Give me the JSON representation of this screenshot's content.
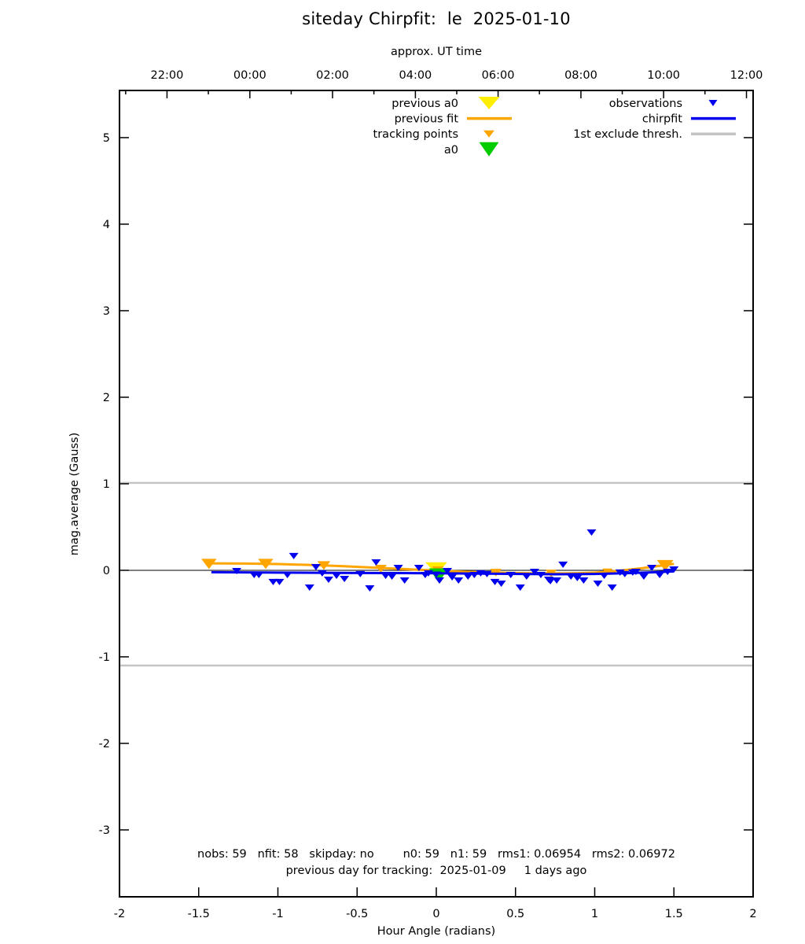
{
  "chart_data": {
    "type": "scatter",
    "title": "siteday Chirpfit:  le  2025-01-10",
    "x2label": "approx. UT time",
    "xlabel": "Hour Angle (radians)",
    "ylabel": "mag.average (Gauss)",
    "xlim": [
      -2,
      2
    ],
    "ylim": [
      -3.773,
      5.545
    ],
    "grid": false,
    "x_ticks": [
      {
        "v": -2,
        "label": "-2"
      },
      {
        "v": -1.5,
        "label": "-1.5"
      },
      {
        "v": -1,
        "label": "-1"
      },
      {
        "v": -0.5,
        "label": "-0.5"
      },
      {
        "v": 0,
        "label": "0"
      },
      {
        "v": 0.5,
        "label": "0.5"
      },
      {
        "v": 1,
        "label": "1"
      },
      {
        "v": 1.5,
        "label": "1.5"
      },
      {
        "v": 2,
        "label": "2"
      }
    ],
    "y_ticks": [
      {
        "v": -3,
        "label": "-3"
      },
      {
        "v": -2,
        "label": "-2"
      },
      {
        "v": -1,
        "label": "-1"
      },
      {
        "v": 0,
        "label": "0"
      },
      {
        "v": 1,
        "label": "1"
      },
      {
        "v": 2,
        "label": "2"
      },
      {
        "v": 3,
        "label": "3"
      },
      {
        "v": 4,
        "label": "4"
      },
      {
        "v": 5,
        "label": "5"
      }
    ],
    "ut_ticks": [
      {
        "ha": -1.7,
        "label": "22:00"
      },
      {
        "ha": -1.177,
        "label": "00:00"
      },
      {
        "ha": -0.655,
        "label": "02:00"
      },
      {
        "ha": -0.132,
        "label": "04:00"
      },
      {
        "ha": 0.39,
        "label": "06:00"
      },
      {
        "ha": 0.913,
        "label": "08:00"
      },
      {
        "ha": 1.435,
        "label": "10:00"
      },
      {
        "ha": 1.958,
        "label": "12:00"
      }
    ],
    "ut_minor_ticks": [
      -1.961,
      -1.439,
      -0.916,
      -0.394,
      0.129,
      0.651,
      1.174,
      1.696
    ],
    "colors": {
      "observations": "#0000ee",
      "chirpfit": "#0000ee",
      "previous_fit": "#ffa500",
      "tracking_points": "#ffa500",
      "previous_a0": "#ffee00",
      "a0": "#00cc00",
      "exclude_threshold": "#c4c4c4",
      "axis": "#000000"
    },
    "series": {
      "exclude_thresholds": {
        "name": "1st exclude thresh.",
        "values": [
          1.01,
          -1.1
        ]
      },
      "previous_a0": {
        "name": "previous a0",
        "points": [
          [
            0.0,
            0.025
          ]
        ]
      },
      "a0": {
        "name": "a0",
        "points": [
          [
            0.015,
            -0.06
          ]
        ]
      },
      "previous_fit": {
        "name": "previous fit",
        "points": [
          [
            -1.45,
            0.08
          ],
          [
            -1.2,
            0.078
          ],
          [
            -1.0,
            0.072
          ],
          [
            -0.8,
            0.062
          ],
          [
            -0.6,
            0.048
          ],
          [
            -0.4,
            0.032
          ],
          [
            -0.2,
            0.014
          ],
          [
            0.0,
            -0.004
          ],
          [
            0.2,
            -0.018
          ],
          [
            0.4,
            -0.028
          ],
          [
            0.6,
            -0.034
          ],
          [
            0.8,
            -0.036
          ],
          [
            0.9,
            -0.033
          ],
          [
            1.0,
            -0.026
          ],
          [
            1.1,
            -0.014
          ],
          [
            1.2,
            0.004
          ],
          [
            1.3,
            0.025
          ],
          [
            1.4,
            0.05
          ],
          [
            1.5,
            0.075
          ]
        ]
      },
      "chirpfit": {
        "name": "chirpfit",
        "points": [
          [
            -1.42,
            -0.022
          ],
          [
            -1.0,
            -0.027
          ],
          [
            -0.5,
            -0.031
          ],
          [
            0.0,
            -0.034
          ],
          [
            0.4,
            -0.04
          ],
          [
            0.75,
            -0.046
          ],
          [
            1.0,
            -0.042
          ],
          [
            1.2,
            -0.033
          ],
          [
            1.35,
            -0.024
          ],
          [
            1.5,
            -0.013
          ]
        ]
      },
      "tracking_points": {
        "name": "tracking points",
        "points": [
          [
            -1.435,
            0.073,
            1.3
          ],
          [
            -1.077,
            0.073,
            1.3
          ],
          [
            -0.71,
            0.055,
            1.1
          ],
          [
            -0.35,
            0.018,
            1.0
          ],
          [
            0.01,
            0.0,
            1.0
          ],
          [
            0.376,
            -0.027,
            0.95
          ],
          [
            0.725,
            -0.036,
            0.95
          ],
          [
            1.08,
            -0.018,
            0.85
          ],
          [
            1.445,
            0.055,
            1.4
          ]
        ]
      },
      "observations": {
        "name": "observations",
        "points": [
          [
            -1.26,
            -0.01
          ],
          [
            -1.15,
            -0.055
          ],
          [
            -1.12,
            -0.055
          ],
          [
            -1.03,
            -0.136
          ],
          [
            -0.99,
            -0.136
          ],
          [
            -0.94,
            -0.055
          ],
          [
            -0.9,
            0.164
          ],
          [
            -0.8,
            -0.2
          ],
          [
            -0.76,
            0.036
          ],
          [
            -0.72,
            -0.036
          ],
          [
            -0.68,
            -0.109
          ],
          [
            -0.63,
            -0.064
          ],
          [
            -0.58,
            -0.1
          ],
          [
            -0.48,
            -0.045
          ],
          [
            -0.42,
            -0.21
          ],
          [
            -0.38,
            0.09
          ],
          [
            -0.32,
            -0.064
          ],
          [
            -0.28,
            -0.073
          ],
          [
            -0.24,
            0.027
          ],
          [
            -0.2,
            -0.118
          ],
          [
            -0.11,
            0.027
          ],
          [
            -0.07,
            -0.055
          ],
          [
            -0.05,
            -0.036
          ],
          [
            0.0,
            -0.05
          ],
          [
            0.02,
            -0.118
          ],
          [
            0.07,
            -0.009
          ],
          [
            0.1,
            -0.082
          ],
          [
            0.14,
            -0.118
          ],
          [
            0.2,
            -0.073
          ],
          [
            0.24,
            -0.055
          ],
          [
            0.28,
            -0.036
          ],
          [
            0.32,
            -0.045
          ],
          [
            0.37,
            -0.136
          ],
          [
            0.41,
            -0.155
          ],
          [
            0.47,
            -0.055
          ],
          [
            0.53,
            -0.2
          ],
          [
            0.57,
            -0.073
          ],
          [
            0.62,
            -0.018
          ],
          [
            0.66,
            -0.055
          ],
          [
            0.71,
            -0.109
          ],
          [
            0.72,
            -0.127
          ],
          [
            0.76,
            -0.118
          ],
          [
            0.8,
            0.064
          ],
          [
            0.85,
            -0.073
          ],
          [
            0.89,
            -0.09
          ],
          [
            0.93,
            -0.118
          ],
          [
            0.98,
            0.436
          ],
          [
            1.02,
            -0.155
          ],
          [
            1.06,
            -0.064
          ],
          [
            1.11,
            -0.2
          ],
          [
            1.16,
            -0.027
          ],
          [
            1.19,
            -0.045
          ],
          [
            1.24,
            -0.027
          ],
          [
            1.26,
            -0.018
          ],
          [
            1.31,
            -0.073
          ],
          [
            1.36,
            0.027
          ],
          [
            1.41,
            -0.055
          ],
          [
            1.46,
            -0.018
          ],
          [
            1.5,
            0.009
          ]
        ]
      }
    },
    "legend": {
      "left_rows": [
        {
          "label": "previous a0",
          "marker": "triangle",
          "color": "#ffee00",
          "size": [
            27,
            16
          ]
        },
        {
          "label": "previous fit",
          "marker": "line",
          "color": "#ffa500"
        },
        {
          "label": "tracking points",
          "marker": "triangle",
          "color": "#ffa500",
          "size": [
            14,
            9
          ]
        },
        {
          "label": "a0",
          "marker": "triangle",
          "color": "#00cc00",
          "size": [
            25,
            18
          ]
        }
      ],
      "right_rows": [
        {
          "label": "observations",
          "marker": "triangle",
          "color": "#0000ee",
          "size": [
            11,
            8
          ]
        },
        {
          "label": "chirpfit",
          "marker": "line",
          "color": "#0000ee"
        },
        {
          "label": "1st exclude thresh.",
          "marker": "line",
          "color": "#c4c4c4"
        }
      ]
    },
    "stats": {
      "line1": "nobs: 59   nfit: 58   skipday: no        n0: 59   n1: 59   rms1: 0.06954   rms2: 0.06972",
      "line2": "previous day for tracking:  2025-01-09     1 days ago",
      "nobs": 59,
      "nfit": 58,
      "skipday": "no",
      "n0": 59,
      "n1": 59,
      "rms1": 0.06954,
      "rms2": 0.06972,
      "previous_day_for_tracking": "2025-01-09",
      "days_ago": "1 days ago"
    }
  }
}
